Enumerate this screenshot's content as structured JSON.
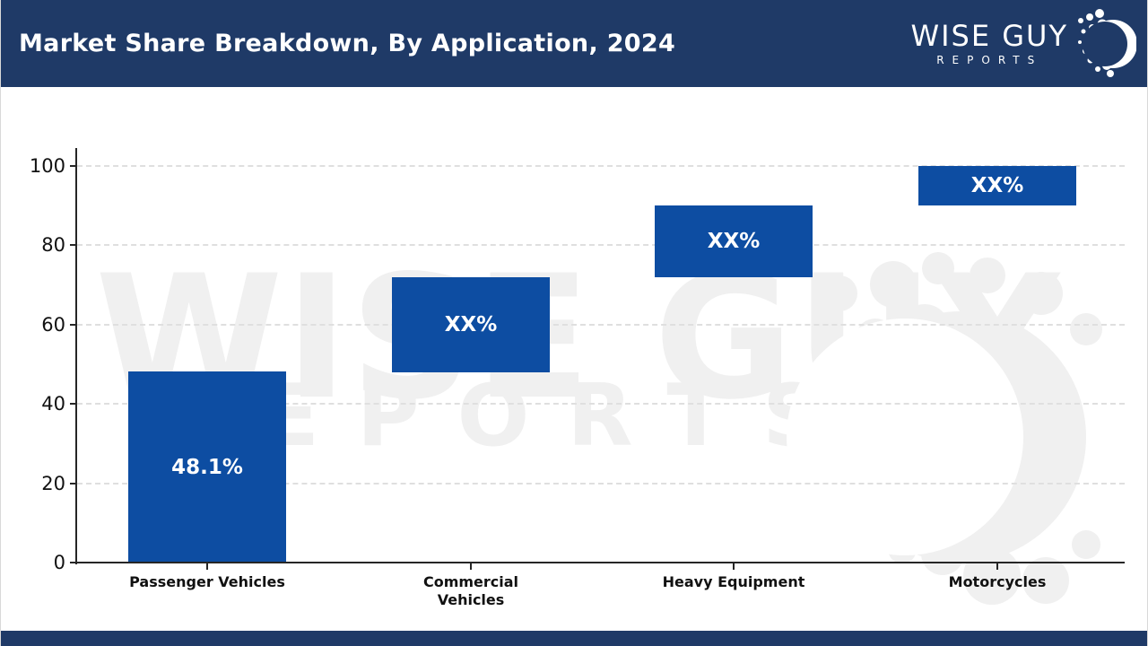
{
  "header": {
    "title": "Market Share Breakdown, By Application, 2024",
    "logo": {
      "line1": "WISE GUY",
      "line2": "REPORTS"
    }
  },
  "watermark": {
    "line1": "WISE GUY",
    "line2": "REPORTS"
  },
  "chart_data": {
    "type": "bar",
    "subtype": "waterfall",
    "title": "Market Share Breakdown, By Application, 2024",
    "categories": [
      "Passenger Vehicles",
      "Commercial\nVehicles",
      "Heavy Equipment",
      "Motorcycles"
    ],
    "segments": [
      {
        "category": "Passenger Vehicles",
        "start": 0,
        "end": 48.1,
        "label": "48.1%"
      },
      {
        "category": "Commercial Vehicles",
        "start": 48.1,
        "end": 72,
        "label": "XX%"
      },
      {
        "category": "Heavy Equipment",
        "start": 72,
        "end": 90,
        "label": "XX%"
      },
      {
        "category": "Motorcycles",
        "start": 90,
        "end": 100,
        "label": "XX%"
      }
    ],
    "xlabel": "",
    "ylabel": "",
    "ylim": [
      0,
      100
    ],
    "yticks": [
      0,
      20,
      40,
      60,
      80,
      100
    ],
    "grid": true,
    "legend": false
  },
  "colors": {
    "header_bg": "#1f3a67",
    "footer_bg": "#1f3a67",
    "bar": "#0d4da2",
    "bar_label": "#ffffff",
    "axis": "#262626",
    "tick_label": "#111111",
    "gridline": "#dfdfdf",
    "watermark": "#f0f0f0",
    "background": "#ffffff"
  }
}
